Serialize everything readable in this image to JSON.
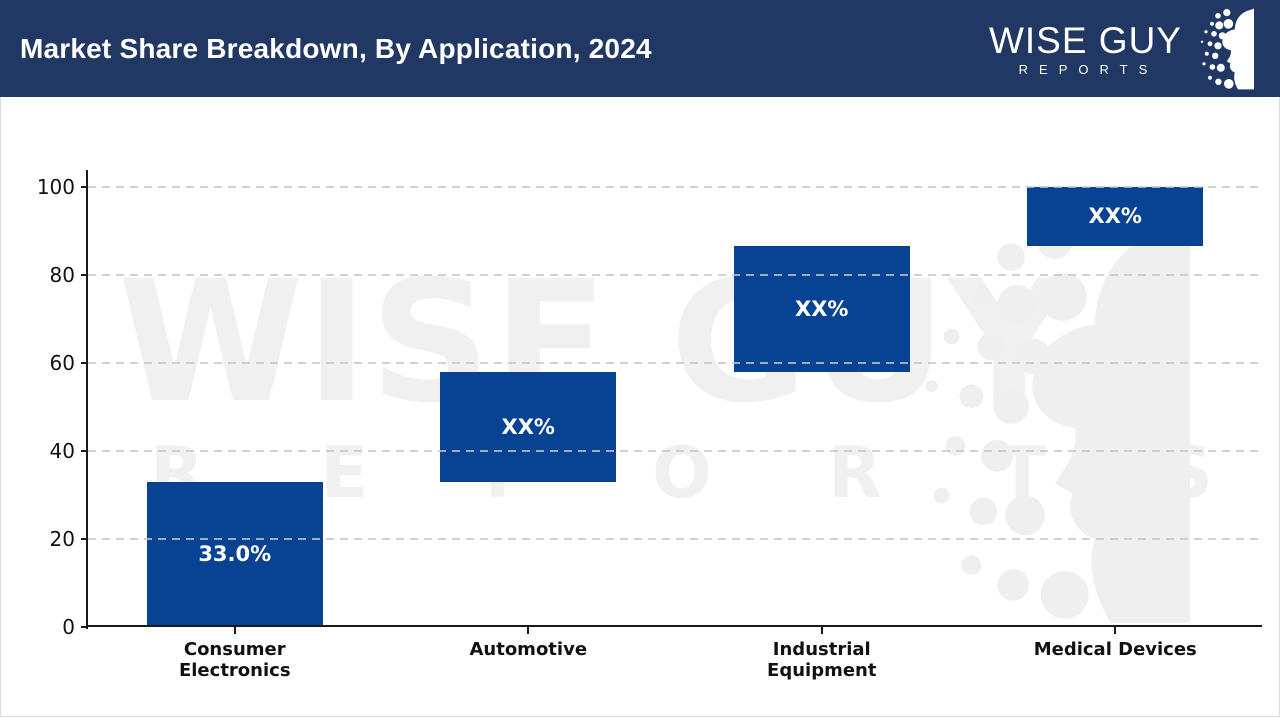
{
  "header": {
    "title": "Market Share Breakdown, By Application, 2024",
    "background_color": "#213864",
    "logo": {
      "wordmark": "WISE GUY",
      "subtext": "REPORTS"
    }
  },
  "watermark": {
    "wordmark": "WISE GUY",
    "subtext": "R E P O R T S"
  },
  "chart_data": {
    "type": "bar",
    "subtype": "waterfall",
    "title": "Market Share Breakdown, By Application, 2024",
    "categories": [
      "Consumer Electronics",
      "Automotive",
      "Industrial Equipment",
      "Medical Devices"
    ],
    "category_display": [
      "Consumer\nElectronics",
      "Automotive",
      "Industrial\nEquipment",
      "Medical Devices"
    ],
    "bars": [
      {
        "category": "Consumer Electronics",
        "start": 0,
        "end": 33.0,
        "value": 33.0,
        "label": "33.0%"
      },
      {
        "category": "Automotive",
        "start": 33.0,
        "end": 58.0,
        "value": 25.0,
        "label": "XX%"
      },
      {
        "category": "Industrial Equipment",
        "start": 58.0,
        "end": 86.6,
        "value": 28.6,
        "label": "XX%"
      },
      {
        "category": "Medical Devices",
        "start": 86.6,
        "end": 100.0,
        "value": 13.4,
        "label": "XX%"
      }
    ],
    "bar_labels": [
      "33.0%",
      "XX%",
      "XX%",
      "XX%"
    ],
    "xlabel": "",
    "ylabel": "",
    "ylim": [
      0,
      100
    ],
    "yticks": [
      0,
      20,
      40,
      60,
      80,
      100
    ],
    "grid": {
      "horizontal": true,
      "style": "dashed",
      "drawn_over_bars": true
    },
    "legend": null,
    "colors": {
      "bar": "#084293",
      "grid": "#c6c6c6",
      "axis": "#1a1a1a",
      "bar_label": "#ffffff",
      "tick_label": "#111111",
      "watermark": "#f0f0f1"
    }
  }
}
